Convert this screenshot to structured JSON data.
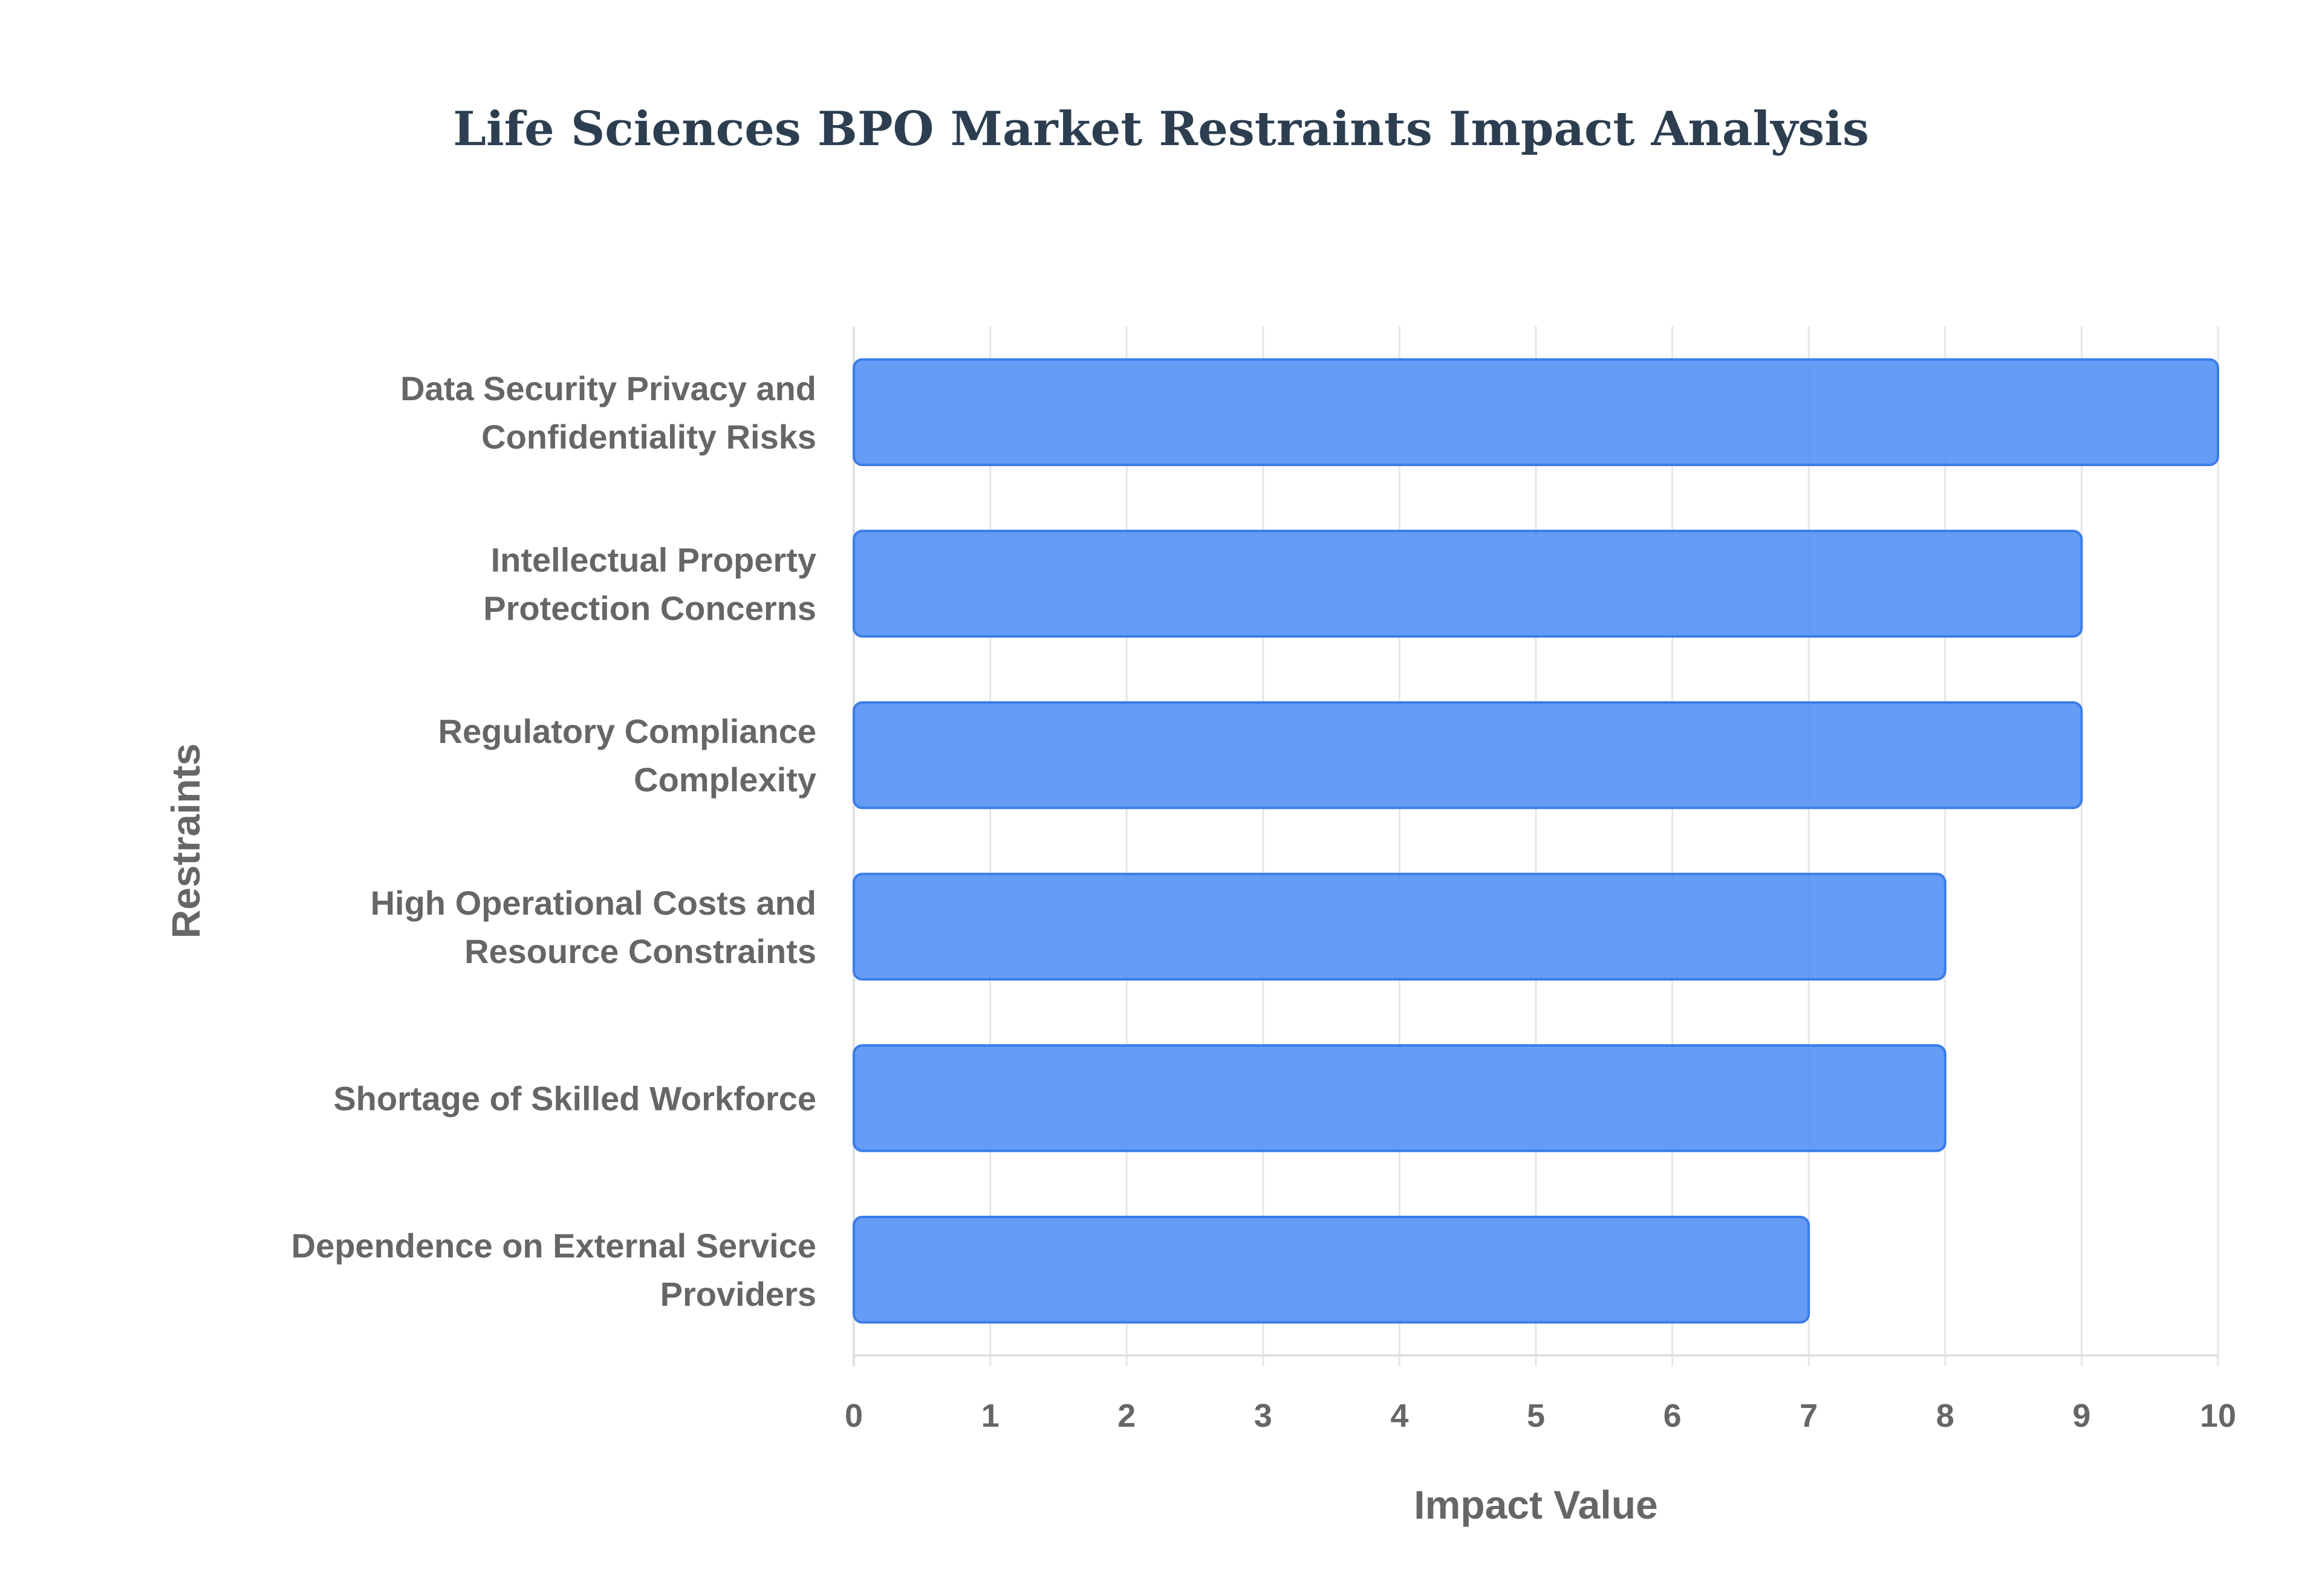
{
  "title": "Life Sciences BPO Market Restraints Impact Analysis",
  "chart_data": {
    "type": "bar",
    "orientation": "horizontal",
    "title": "Life Sciences BPO Market Restraints Impact Analysis",
    "xlabel": "Impact Value",
    "ylabel": "Restraints",
    "xlim": [
      0,
      10
    ],
    "x_ticks": [
      "0",
      "1",
      "2",
      "3",
      "4",
      "5",
      "6",
      "7",
      "8",
      "9",
      "10"
    ],
    "grid": true,
    "legend": "none",
    "bar_color": "#4f8ef5",
    "categories": [
      [
        "Data Security Privacy and",
        "Confidentiality Risks"
      ],
      [
        "Intellectual Property",
        "Protection Concerns"
      ],
      [
        "Regulatory Compliance",
        "Complexity"
      ],
      [
        "High Operational Costs and",
        "Resource Constraints"
      ],
      [
        "Shortage of Skilled Workforce"
      ],
      [
        "Dependence on External Service",
        "Providers"
      ]
    ],
    "values": [
      10,
      9,
      9,
      8,
      8,
      7
    ]
  }
}
